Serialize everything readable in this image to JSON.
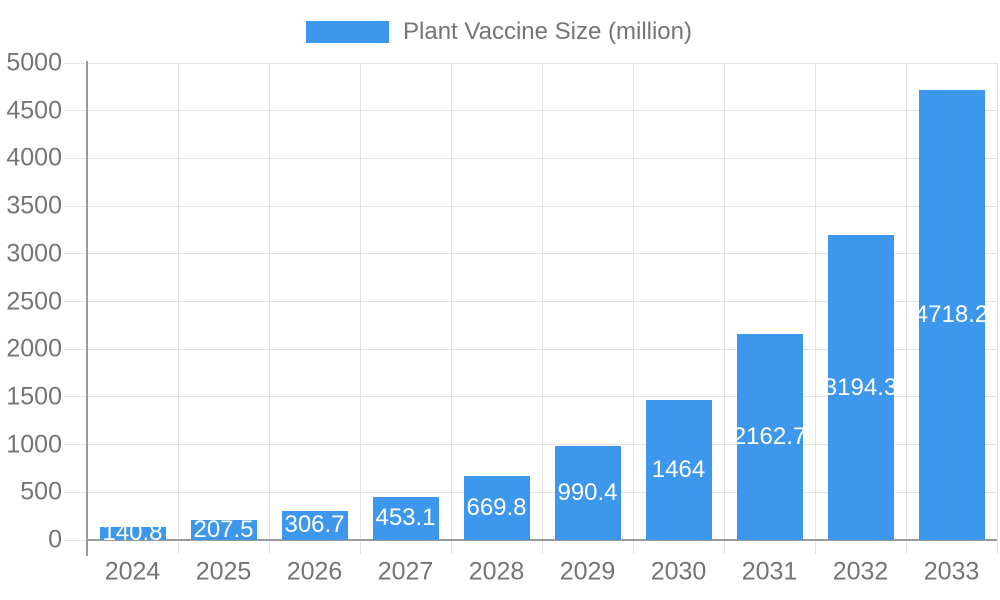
{
  "chart_data": {
    "type": "bar",
    "title": "Plant Vaccine Size (million)",
    "categories": [
      "2024",
      "2025",
      "2026",
      "2027",
      "2028",
      "2029",
      "2030",
      "2031",
      "2032",
      "2033"
    ],
    "values": [
      140.8,
      207.5,
      306.7,
      453.1,
      669.8,
      990.4,
      1464,
      2162.7,
      3194.3,
      4718.2
    ],
    "value_labels": [
      "140.8",
      "207.5",
      "306.7",
      "453.1",
      "669.8",
      "990.4",
      "1464",
      "2162.7",
      "3194.3",
      "4718.2"
    ],
    "ylim": [
      0,
      5000
    ],
    "ytick_step": 500,
    "ytick_labels": [
      "0",
      "500",
      "1000",
      "1500",
      "2000",
      "2500",
      "3000",
      "3500",
      "4000",
      "4500",
      "5000"
    ],
    "grid": true,
    "legend_position": "top-center",
    "colors": {
      "bar": "#3d97ed",
      "value_label": "#ffffff",
      "axis_text": "#757575",
      "legend_text": "#757575",
      "gridline": "#e3e3e3",
      "axis_line": "#9a9a9a",
      "background": "#ffffff"
    }
  }
}
